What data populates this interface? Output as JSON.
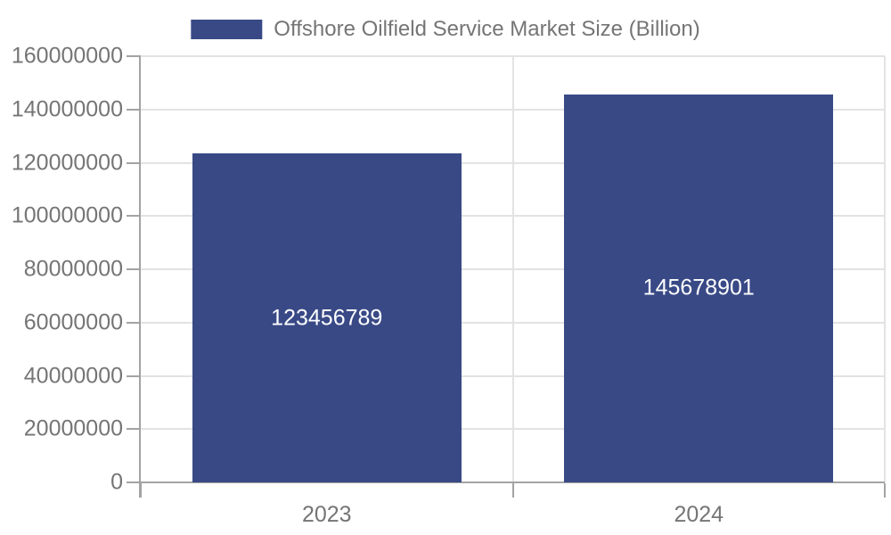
{
  "legend": {
    "label": "Offshore Oilfield Service Market Size (Billion)"
  },
  "chart_data": {
    "type": "bar",
    "title": "Offshore Oilfield Service Market Size (Billion)",
    "categories": [
      "2023",
      "2024"
    ],
    "values": [
      123456789,
      145678901
    ],
    "data_labels": [
      "123456789",
      "145678901"
    ],
    "series": [
      {
        "name": "Offshore Oilfield Service Market Size (Billion)",
        "values": [
          123456789,
          145678901
        ]
      }
    ],
    "xlabel": "",
    "ylabel": "",
    "ylim": [
      0,
      160000000
    ],
    "ytick_step": 20000000,
    "yticks": [
      0,
      20000000,
      40000000,
      60000000,
      80000000,
      100000000,
      120000000,
      140000000,
      160000000
    ],
    "grid": true,
    "legend_position": "top",
    "data_label_position": "inside-center"
  },
  "colors": {
    "bar": "#394986",
    "grid": "#E3E3E3",
    "axis": "#A3A3A3",
    "tick_text": "#757575",
    "data_label_text": "#FFFFFF",
    "background": "#FFFFFF"
  }
}
